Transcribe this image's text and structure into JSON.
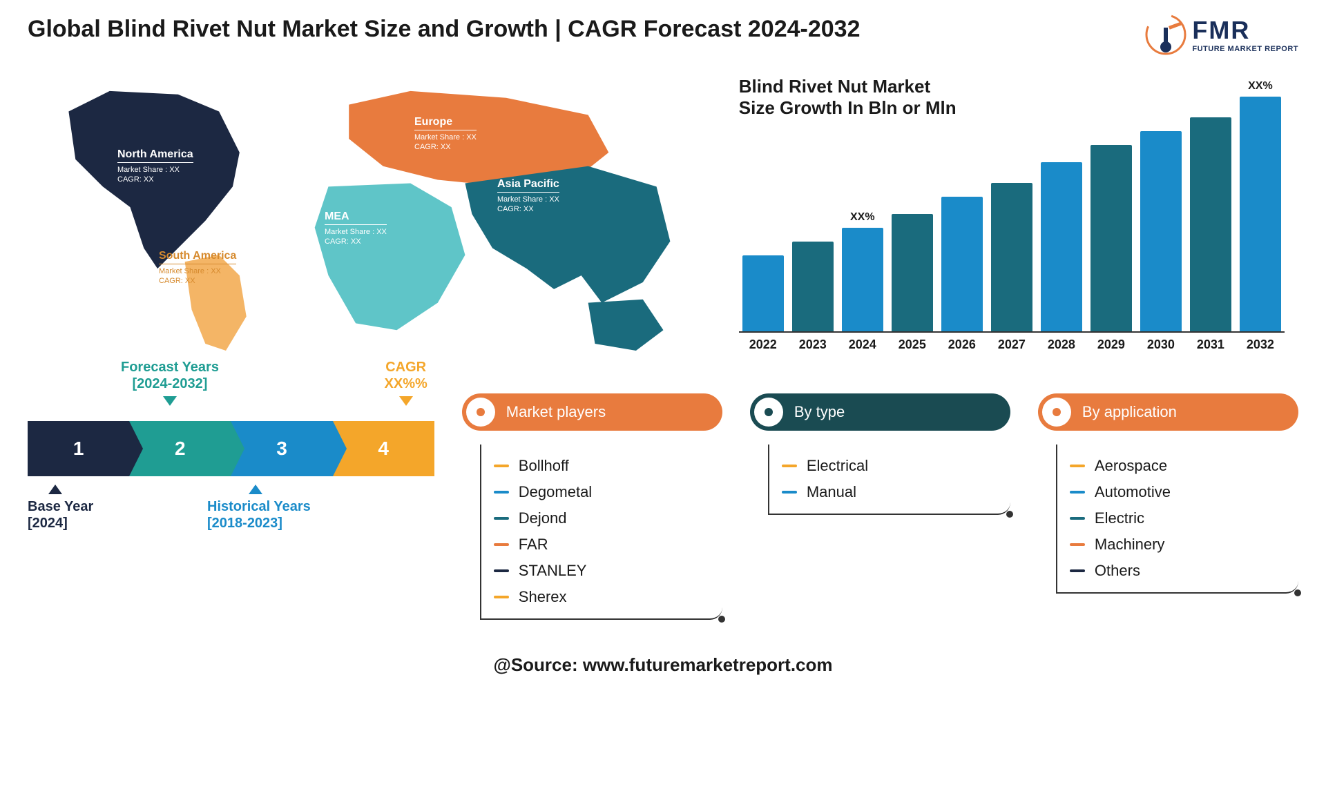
{
  "title": "Global Blind Rivet Nut Market Size and Growth | CAGR Forecast 2024-2032",
  "logo": {
    "fmr": "FMR",
    "sub": "FUTURE MARKET REPORT"
  },
  "map": {
    "regions": [
      {
        "key": "na",
        "name": "North America",
        "share": "Market Share : XX",
        "cagr": "CAGR: XX",
        "color": "#1c2842"
      },
      {
        "key": "sa",
        "name": "South America",
        "share": "Market Share : XX",
        "cagr": "CAGR: XX",
        "color": "#f4b566"
      },
      {
        "key": "eu",
        "name": "Europe",
        "share": "Market Share : XX",
        "cagr": "CAGR: XX",
        "color": "#e87b3e"
      },
      {
        "key": "mea",
        "name": "MEA",
        "share": "Market Share : XX",
        "cagr": "CAGR: XX",
        "color": "#5fc5c8"
      },
      {
        "key": "ap",
        "name": "Asia Pacific",
        "share": "Market Share : XX",
        "cagr": "CAGR: XX",
        "color": "#1a6b7d"
      }
    ]
  },
  "chart": {
    "title": "Blind Rivet Nut Market Size Growth In Bln or Mln",
    "type": "bar",
    "years": [
      "2022",
      "2023",
      "2024",
      "2025",
      "2026",
      "2027",
      "2028",
      "2029",
      "2030",
      "2031",
      "2032"
    ],
    "heights": [
      110,
      130,
      150,
      170,
      195,
      215,
      245,
      270,
      290,
      310,
      340
    ],
    "colors": [
      "#1a8bc9",
      "#1a6b7d",
      "#1a8bc9",
      "#1a6b7d",
      "#1a8bc9",
      "#1a6b7d",
      "#1a8bc9",
      "#1a6b7d",
      "#1a8bc9",
      "#1a6b7d",
      "#1a8bc9"
    ],
    "annotations": [
      {
        "index": 2,
        "text": "XX%"
      },
      {
        "index": 10,
        "text": "XX%"
      }
    ],
    "bar_gap": 12
  },
  "timeline": {
    "segments": [
      {
        "n": "1",
        "color": "#1c2842"
      },
      {
        "n": "2",
        "color": "#1f9d93"
      },
      {
        "n": "3",
        "color": "#1a8bc9"
      },
      {
        "n": "4",
        "color": "#f4a62a"
      }
    ],
    "labels": {
      "base": {
        "title": "Base Year",
        "sub": "[2024]",
        "color": "#1c2842"
      },
      "forecast": {
        "title": "Forecast Years",
        "sub": "[2024-2032]",
        "color": "#1f9d93"
      },
      "hist": {
        "title": "Historical Years",
        "sub": "[2018-2023]",
        "color": "#1a8bc9"
      },
      "cagr": {
        "title": "CAGR",
        "sub": "XX%%",
        "color": "#f4a62a"
      }
    }
  },
  "pills": [
    {
      "title": "Market players",
      "bg": "#e87b3e",
      "items": [
        {
          "t": "Bollhoff",
          "c": "#f4a62a"
        },
        {
          "t": "Degometal",
          "c": "#1a8bc9"
        },
        {
          "t": "Dejond",
          "c": "#1a6b7d"
        },
        {
          "t": "FAR",
          "c": "#e87b3e"
        },
        {
          "t": "STANLEY",
          "c": "#1c2842"
        },
        {
          "t": "Sherex",
          "c": "#f4a62a"
        }
      ]
    },
    {
      "title": "By type",
      "bg": "#1a4b52",
      "items": [
        {
          "t": "Electrical",
          "c": "#f4a62a"
        },
        {
          "t": "Manual",
          "c": "#1a8bc9"
        }
      ]
    },
    {
      "title": "By application",
      "bg": "#e87b3e",
      "items": [
        {
          "t": "Aerospace",
          "c": "#f4a62a"
        },
        {
          "t": "Automotive",
          "c": "#1a8bc9"
        },
        {
          "t": "Electric",
          "c": "#1a6b7d"
        },
        {
          "t": "Machinery",
          "c": "#e87b3e"
        },
        {
          "t": "Others",
          "c": "#1c2842"
        }
      ]
    }
  ],
  "footer": "@Source: www.futuremarketreport.com"
}
